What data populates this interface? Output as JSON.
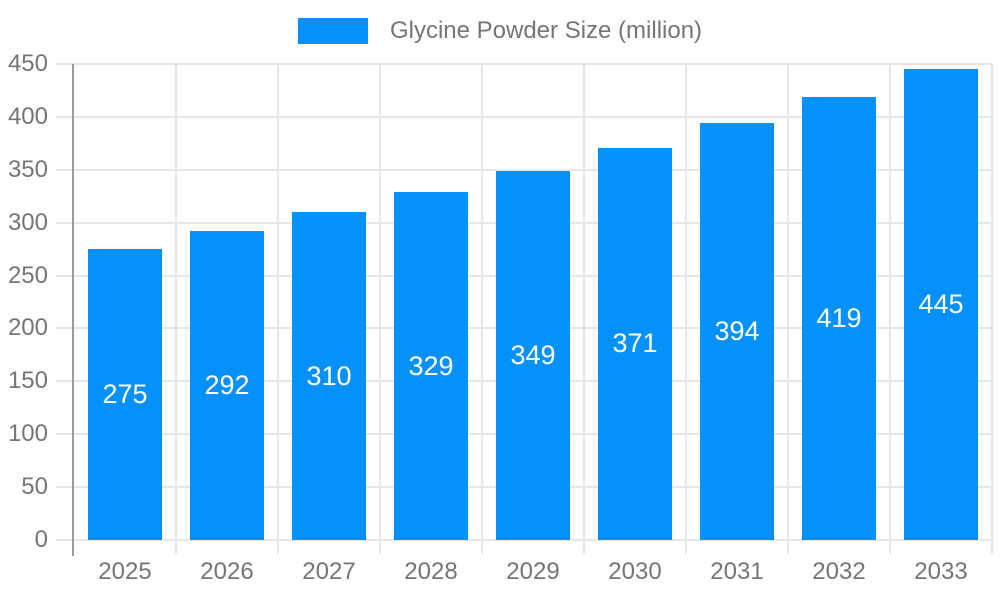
{
  "legend": {
    "label": "Glycine Powder Size (million)"
  },
  "chart_data": {
    "type": "bar",
    "title": "Glycine Powder Size (million)",
    "categories": [
      "2025",
      "2026",
      "2027",
      "2028",
      "2029",
      "2030",
      "2031",
      "2032",
      "2033"
    ],
    "values": [
      275,
      292,
      310,
      329,
      349,
      371,
      394,
      419,
      445
    ],
    "series": [
      {
        "name": "Glycine Powder Size (million)",
        "values": [
          275,
          292,
          310,
          329,
          349,
          371,
          394,
          419,
          445
        ]
      }
    ],
    "xlabel": "",
    "ylabel": "",
    "ylim": [
      0,
      450
    ],
    "yticks": [
      0,
      50,
      100,
      150,
      200,
      250,
      300,
      350,
      400,
      450
    ],
    "grid": true,
    "legend_position": "top-center",
    "bar_labels_visible": true,
    "bar_label_position": "center",
    "colors": {
      "bar": "#0591fb",
      "bar_label": "#ffffff",
      "axis_text": "#757575",
      "grid_line": "#e6e6e6",
      "axis_line": "#9b9b9b",
      "background": "#ffffff"
    }
  }
}
